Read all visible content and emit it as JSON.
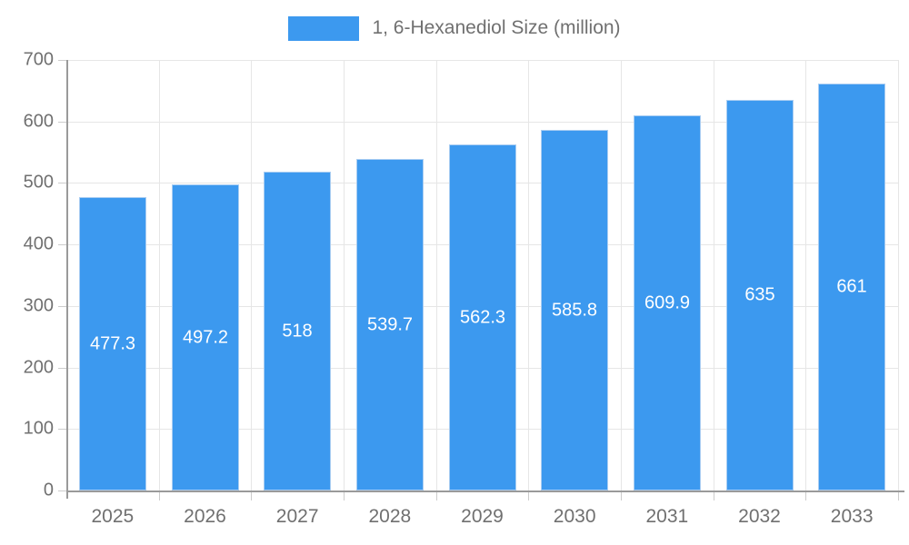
{
  "chart_data": {
    "type": "bar",
    "title": "1, 6-Hexanediol Size (million)",
    "categories": [
      "2025",
      "2026",
      "2027",
      "2028",
      "2029",
      "2030",
      "2031",
      "2032",
      "2033"
    ],
    "values": [
      477.3,
      497.2,
      518,
      539.7,
      562.3,
      585.8,
      609.9,
      635,
      661
    ],
    "series": [
      {
        "name": "1, 6-Hexanediol Size (million)",
        "values": [
          477.3,
          497.2,
          518,
          539.7,
          562.3,
          585.8,
          609.9,
          635,
          661
        ]
      }
    ],
    "y_ticks": [
      "0",
      "100",
      "200",
      "300",
      "400",
      "500",
      "600",
      "700"
    ],
    "ylim": [
      0,
      700
    ],
    "xlabel": "",
    "ylabel": "",
    "legend_position": "top-center",
    "grid": true,
    "value_labels": "inside-center",
    "colors": {
      "bar_fill": "#3c99ef",
      "bar_border": "#a9cdf2",
      "bar_label_text": "#ffffff",
      "axis_line": "#9a9a9a",
      "grid_line": "#e6e6e6",
      "tick_line": "#cccccc",
      "axis_text": "#707070",
      "background": "#ffffff"
    }
  }
}
